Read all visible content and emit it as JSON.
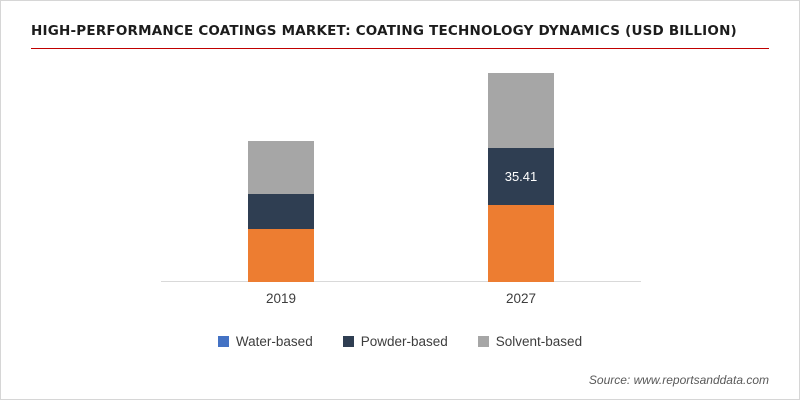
{
  "header": {
    "title": "HIGH-PERFORMANCE COATINGS MARKET: COATING TECHNOLOGY DYNAMICS (USD BILLION)"
  },
  "colors": {
    "title_rule": "#c00000",
    "axis_line": "#d9d9d9"
  },
  "chart_data": {
    "type": "bar",
    "stacked": true,
    "title": "HIGH-PERFORMANCE COATINGS MARKET: COATING TECHNOLOGY DYNAMICS (USD BILLION)",
    "xlabel": "",
    "ylabel": "",
    "ylim": [
      0,
      140
    ],
    "grid": false,
    "legend_position": "bottom",
    "categories": [
      "2019",
      "2027"
    ],
    "series": [
      {
        "name": "Water-based",
        "legend_color": "#4472c4",
        "bar_color": "#ed7d31",
        "values": [
          33,
          48.5
        ]
      },
      {
        "name": "Powder-based",
        "legend_color": "#2f3e52",
        "bar_color": "#2f3e52",
        "values": [
          22.5,
          35.41
        ]
      },
      {
        "name": "Solvent-based",
        "legend_color": "#a6a6a6",
        "bar_color": "#a6a6a6",
        "values": [
          33,
          47
        ]
      }
    ],
    "data_labels": [
      {
        "category": "2027",
        "series": "Powder-based",
        "value": "35.41"
      }
    ]
  },
  "footer": {
    "source": "Source: www.reportsanddata.com"
  }
}
